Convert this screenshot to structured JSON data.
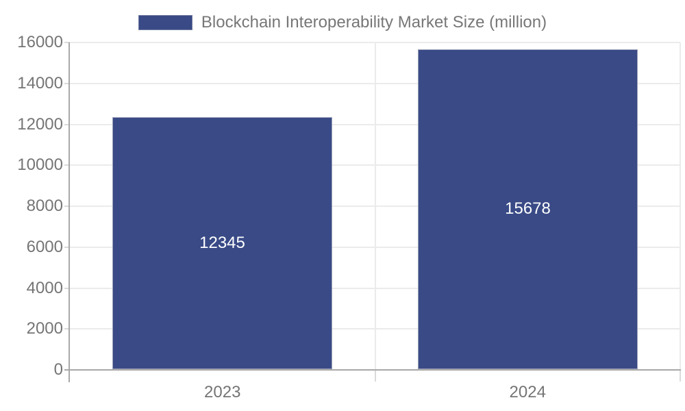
{
  "legend": {
    "label": "Blockchain Interoperability Market Size (million)"
  },
  "chart_data": {
    "type": "bar",
    "title": "Blockchain Interoperability Market Size (million)",
    "series_name": "Blockchain Interoperability Market Size (million)",
    "categories": [
      "2023",
      "2024"
    ],
    "values": [
      12345,
      15678
    ],
    "value_labels": [
      "12345",
      "15678"
    ],
    "xlabel": "",
    "ylabel": "",
    "ylim": [
      0,
      16000
    ],
    "ytick_step": 2000,
    "yticks": [
      "0",
      "2000",
      "4000",
      "6000",
      "8000",
      "10000",
      "12000",
      "14000",
      "16000"
    ],
    "legend_position": "top",
    "grid": true,
    "colors": {
      "bar_fill": "#394a86",
      "bar_border": "#9ea2b9",
      "value_label": "#ffffff",
      "gridline": "#ebebeb",
      "axis_line": "#a8a8a8",
      "tick_mark": "#dadada",
      "tick_label": "#757575",
      "legend_text": "#777777"
    }
  }
}
